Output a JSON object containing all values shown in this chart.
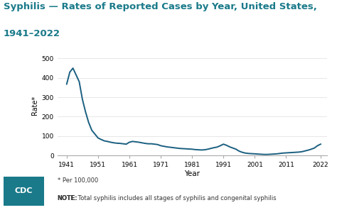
{
  "title_line1": "Syphilis — Rates of Reported Cases by Year, United States,",
  "title_line2": "1941–2022",
  "ylabel": "Rate*",
  "xlabel": "Year",
  "footnote1": "* Per 100,000",
  "footnote2": "NOTE: Total syphilis includes all stages of syphilis and congenital syphilis",
  "title_color": "#1a7a8a",
  "line_color": "#1a5f80",
  "bg_color": "#ffffff",
  "ylim": [
    0,
    520
  ],
  "yticks": [
    0,
    100,
    200,
    300,
    400,
    500
  ],
  "xticks": [
    1941,
    1951,
    1961,
    1971,
    1981,
    1991,
    2001,
    2011,
    2022
  ],
  "years": [
    1941,
    1942,
    1943,
    1944,
    1945,
    1946,
    1947,
    1948,
    1949,
    1950,
    1951,
    1952,
    1953,
    1954,
    1955,
    1956,
    1957,
    1958,
    1959,
    1960,
    1961,
    1962,
    1963,
    1964,
    1965,
    1966,
    1967,
    1968,
    1969,
    1970,
    1971,
    1972,
    1973,
    1974,
    1975,
    1976,
    1977,
    1978,
    1979,
    1980,
    1981,
    1982,
    1983,
    1984,
    1985,
    1986,
    1987,
    1988,
    1989,
    1990,
    1991,
    1992,
    1993,
    1994,
    1995,
    1996,
    1997,
    1998,
    1999,
    2000,
    2001,
    2002,
    2003,
    2004,
    2005,
    2006,
    2007,
    2008,
    2009,
    2010,
    2011,
    2012,
    2013,
    2014,
    2015,
    2016,
    2017,
    2018,
    2019,
    2020,
    2021,
    2022
  ],
  "rates": [
    368,
    430,
    450,
    415,
    380,
    290,
    225,
    170,
    130,
    110,
    90,
    82,
    75,
    72,
    68,
    65,
    63,
    62,
    60,
    58,
    68,
    72,
    70,
    68,
    65,
    62,
    60,
    60,
    58,
    56,
    50,
    47,
    44,
    42,
    40,
    38,
    36,
    35,
    34,
    33,
    32,
    30,
    29,
    28,
    29,
    32,
    36,
    40,
    43,
    50,
    58,
    52,
    44,
    38,
    32,
    22,
    16,
    12,
    10,
    9,
    8,
    7,
    6,
    5,
    5,
    6,
    7,
    8,
    10,
    12,
    13,
    14,
    15,
    16,
    17,
    19,
    23,
    27,
    32,
    38,
    50,
    58
  ],
  "cdc_color": "#1a7a8a"
}
